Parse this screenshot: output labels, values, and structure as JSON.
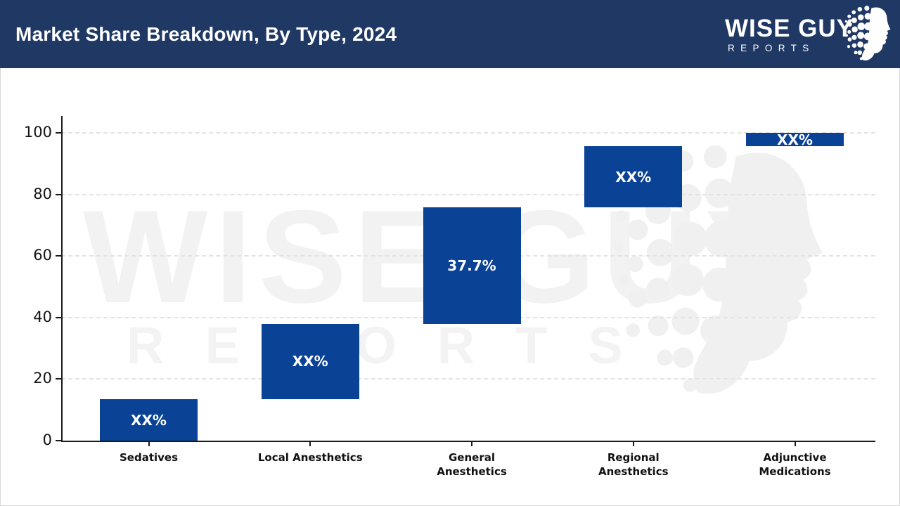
{
  "header": {
    "title": "Market Share Breakdown, By Type, 2024",
    "logo": {
      "name": "WISE GUY",
      "tagline": "REPORTS"
    }
  },
  "watermark": {
    "name": "WISE GUY",
    "tagline": "REPORTS"
  },
  "colors": {
    "header_bg": "#1f3864",
    "bar": "#0a4296",
    "bar_label": "#ffffff",
    "grid": "#e3e3e3",
    "axis": "#1a1a1a",
    "watermark": "#f2f2f2"
  },
  "chart_data": {
    "type": "bar",
    "variant": "waterfall",
    "title": "Market Share Breakdown, By Type, 2024",
    "xlabel": "",
    "ylabel": "",
    "ylim": [
      0,
      100
    ],
    "yticks": [
      0,
      20,
      40,
      60,
      80,
      100
    ],
    "grid": "horizontal-dashed",
    "legend": "none",
    "categories": [
      "Sedatives",
      "Local Anesthetics",
      "General Anesthetics",
      "Regional Anesthetics",
      "Adjunctive Medications"
    ],
    "bars": [
      {
        "category": "Sedatives",
        "category_lines": [
          "Sedatives"
        ],
        "start": 0,
        "end": 13.4,
        "label": "XX%"
      },
      {
        "category": "Local Anesthetics",
        "category_lines": [
          "Local Anesthetics"
        ],
        "start": 13.4,
        "end": 38.0,
        "label": "XX%"
      },
      {
        "category": "General Anesthetics",
        "category_lines": [
          "General",
          "Anesthetics"
        ],
        "start": 38.0,
        "end": 75.7,
        "label": "37.7%"
      },
      {
        "category": "Regional Anesthetics",
        "category_lines": [
          "Regional",
          "Anesthetics"
        ],
        "start": 75.7,
        "end": 95.6,
        "label": "XX%"
      },
      {
        "category": "Adjunctive Medications",
        "category_lines": [
          "Adjunctive",
          "Medications"
        ],
        "start": 95.6,
        "end": 100.0,
        "label": "XX%"
      }
    ]
  }
}
